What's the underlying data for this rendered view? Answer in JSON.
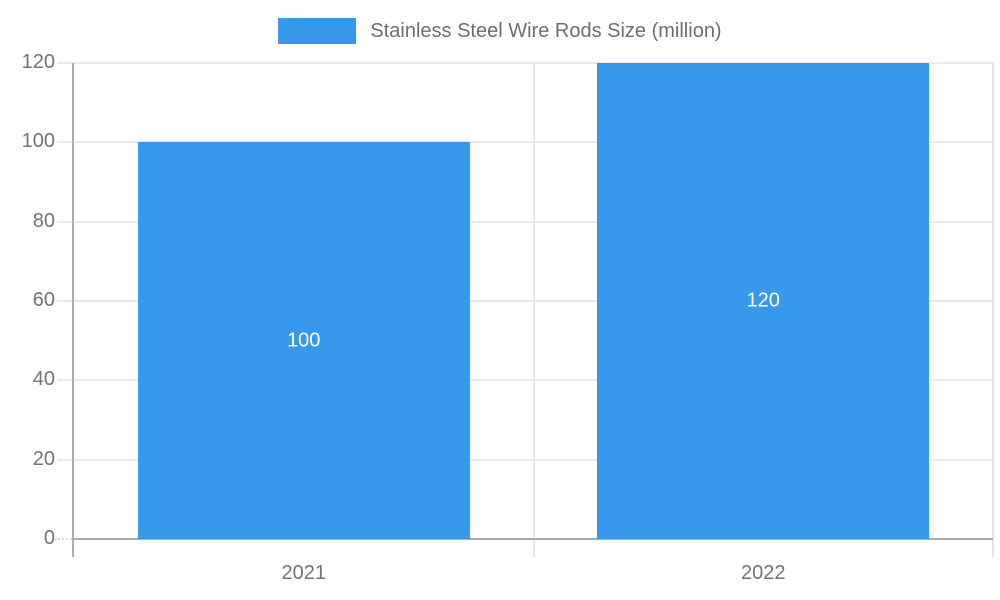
{
  "legend": {
    "label": "Stainless Steel Wire Rods Size (million)"
  },
  "chart_data": {
    "type": "bar",
    "title": "Stainless Steel Wire Rods Size (million)",
    "categories": [
      "2021",
      "2022"
    ],
    "values": [
      100,
      120
    ],
    "bar_labels": [
      "100",
      "120"
    ],
    "xlabel": "",
    "ylabel": "",
    "ylim": [
      0,
      120
    ],
    "yticks": [
      0,
      20,
      40,
      60,
      80,
      100,
      120
    ],
    "grid": true,
    "legend_position": "top",
    "colors": {
      "bar": "#3899EC",
      "bar_label_text": "#FFFFFF",
      "legend_text": "#6E6E6E",
      "tick_text": "#737373",
      "gridline": "#E9E9E9",
      "axis_line": "#ACACAC",
      "background": "#FFFFFF"
    }
  }
}
